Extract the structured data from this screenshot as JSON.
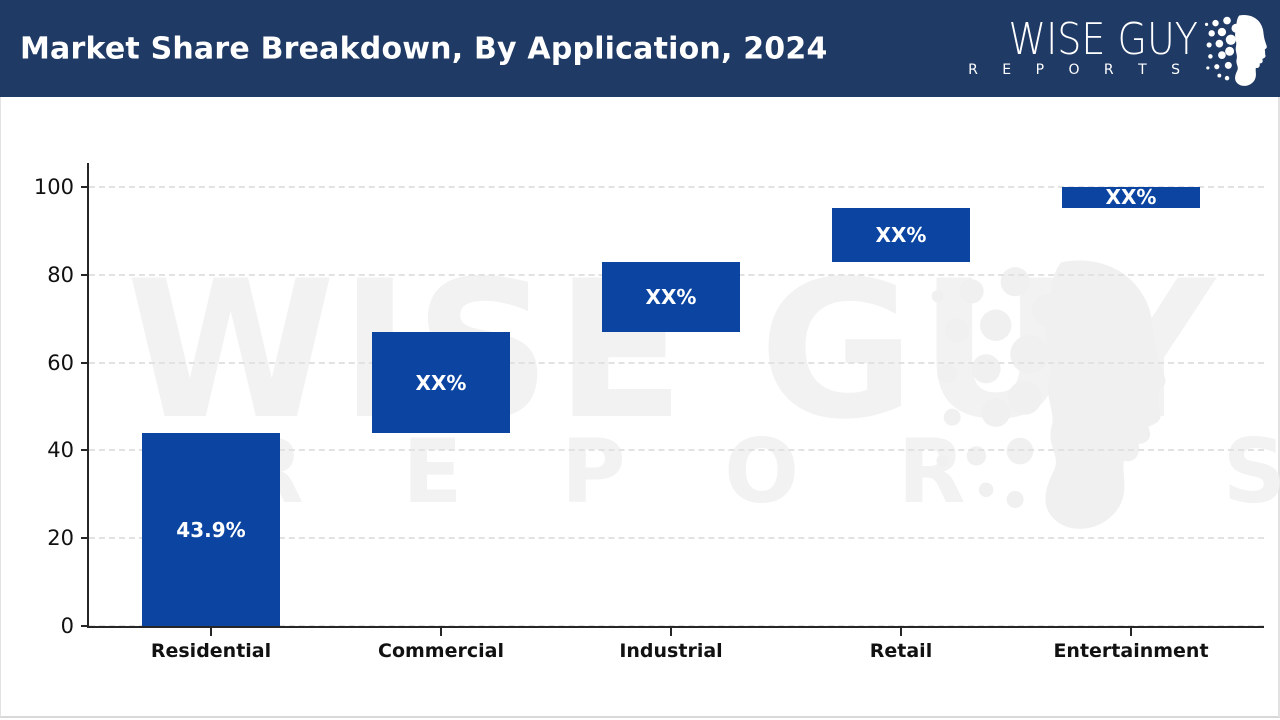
{
  "header": {
    "title": "Market Share Breakdown, By Application, 2024",
    "logo": {
      "name": "WISE GUY",
      "sub": "R E P O R T S"
    }
  },
  "watermark": {
    "name": "WISE GUY",
    "sub": "R E P O R T S"
  },
  "chart_data": {
    "type": "bar",
    "subtype": "waterfall",
    "title": "Market Share Breakdown, By Application, 2024",
    "categories": [
      "Residential",
      "Commercial",
      "Industrial",
      "Retail",
      "Entertainment"
    ],
    "segments": [
      {
        "category": "Residential",
        "start": 0,
        "end": 43.9,
        "label": "43.9%"
      },
      {
        "category": "Commercial",
        "start": 43.9,
        "end": 67,
        "label": "XX%"
      },
      {
        "category": "Industrial",
        "start": 67,
        "end": 83,
        "label": "XX%"
      },
      {
        "category": "Retail",
        "start": 83,
        "end": 95.3,
        "label": "XX%"
      },
      {
        "category": "Entertainment",
        "start": 95.3,
        "end": 100,
        "label": "XX%"
      }
    ],
    "xlabel": "",
    "ylabel": "",
    "yticks": [
      0,
      20,
      40,
      60,
      80,
      100
    ],
    "ylim": [
      0,
      105
    ],
    "grid": "horizontal-dashed",
    "legend": "none",
    "bar_color": "#0b45a1",
    "bar_label_color": "#ffffff"
  },
  "colors": {
    "header_bg": "#203a66",
    "bar": "#0b45a1",
    "axis": "#262626",
    "tick_text": "#111111",
    "grid": "#e2e2e2",
    "watermark": "#f2f2f2",
    "frame": "#d8d8d8"
  }
}
